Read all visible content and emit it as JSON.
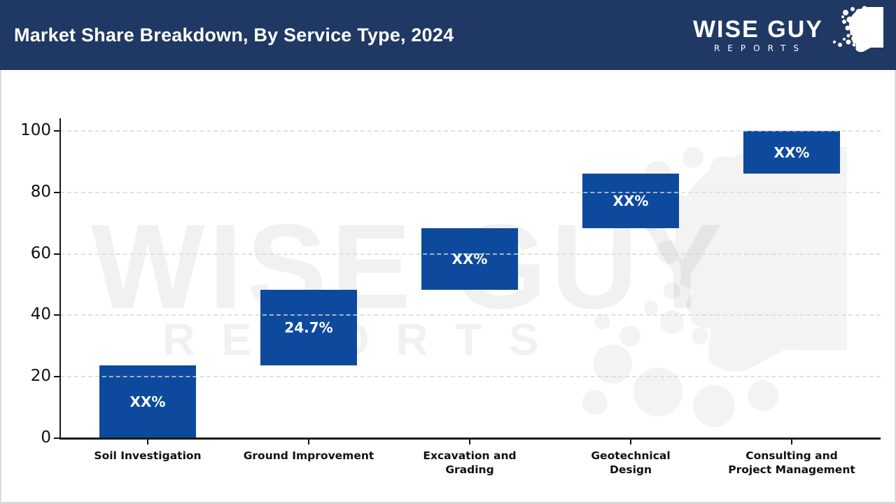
{
  "header": {
    "title": "Market Share Breakdown, By Service Type, 2024",
    "logo_line1": "WISE GUY",
    "logo_line2": "REPORTS",
    "bg_color": "#203864"
  },
  "watermark": {
    "line1": "WISE GUY",
    "line2": "REPORTS"
  },
  "chart_data": {
    "type": "bar",
    "subtype": "waterfall",
    "title": "Market Share Breakdown, By Service Type, 2024",
    "categories": [
      "Soil Investigation",
      "Ground Improvement",
      "Excavation and Grading",
      "Geotechnical Design",
      "Consulting and Project Management"
    ],
    "category_lines": [
      [
        "Soil Investigation"
      ],
      [
        "Ground Improvement"
      ],
      [
        "Excavation and",
        "Grading"
      ],
      [
        "Geotechnical",
        "Design"
      ],
      [
        "Consulting and",
        "Project Management"
      ]
    ],
    "series": [
      {
        "name": "Market Share",
        "segments": [
          {
            "category": "Soil Investigation",
            "start": 0,
            "end": 23.7,
            "label": "XX%"
          },
          {
            "category": "Ground Improvement",
            "start": 23.7,
            "end": 48.4,
            "label": "24.7%"
          },
          {
            "category": "Excavation and Grading",
            "start": 48.4,
            "end": 68.3,
            "label": "XX%"
          },
          {
            "category": "Geotechnical Design",
            "start": 68.3,
            "end": 86.0,
            "label": "XX%"
          },
          {
            "category": "Consulting and Project Management",
            "start": 86.0,
            "end": 100.0,
            "label": "XX%"
          }
        ]
      }
    ],
    "xlabel": "",
    "ylabel": "",
    "ylim": [
      0,
      100
    ],
    "yticks": [
      0,
      20,
      40,
      60,
      80,
      100
    ],
    "grid": "horizontal-dashed",
    "legend": "none",
    "bar_color": "#0D4A9D",
    "bar_label_color": "#FFFFFF"
  }
}
